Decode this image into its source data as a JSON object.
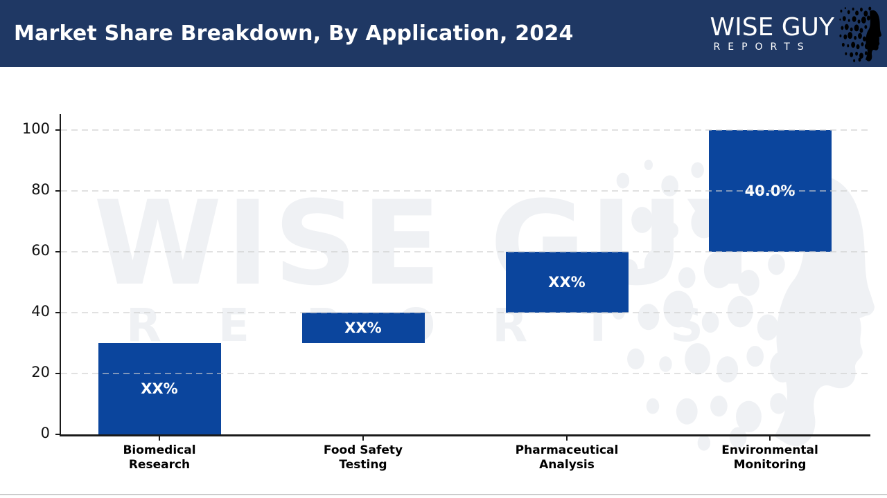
{
  "header": {
    "title": "Market Share Breakdown, By Application, 2024",
    "logo": {
      "name": "WISE GUY",
      "tagline": "REPORTS"
    }
  },
  "watermark": {
    "name": "WISE GUY",
    "tagline": "REPORTS"
  },
  "colors": {
    "header_bg": "#1f3864",
    "bar": "#0b459d",
    "watermark": "#eff1f4",
    "grid": "#d9d9d9",
    "axis": "#1a1a1a"
  },
  "chart_data": {
    "type": "bar",
    "subtype": "waterfall",
    "title": "Market Share Breakdown, By Application, 2024",
    "xlabel": "",
    "ylabel": "",
    "categories": [
      "Biomedical Research",
      "Food Safety Testing",
      "Pharmaceutical Analysis",
      "Environmental Monitoring"
    ],
    "category_label_lines": [
      [
        "Biomedical",
        "Research"
      ],
      [
        "Food Safety",
        "Testing"
      ],
      [
        "Pharmaceutical",
        "Analysis"
      ],
      [
        "Environmental",
        "Monitoring"
      ]
    ],
    "segments": [
      {
        "category": "Biomedical Research",
        "start": 0,
        "end": 30,
        "label": "XX%"
      },
      {
        "category": "Food Safety Testing",
        "start": 30,
        "end": 40,
        "label": "XX%"
      },
      {
        "category": "Pharmaceutical Analysis",
        "start": 40,
        "end": 60,
        "label": "XX%"
      },
      {
        "category": "Environmental Monitoring",
        "start": 60,
        "end": 100,
        "label": "40.0%"
      }
    ],
    "values": [
      30,
      10,
      20,
      40
    ],
    "yticks": [
      0,
      20,
      40,
      60,
      80,
      100
    ],
    "ylim": [
      0,
      105
    ],
    "grid": true,
    "legend": false
  }
}
